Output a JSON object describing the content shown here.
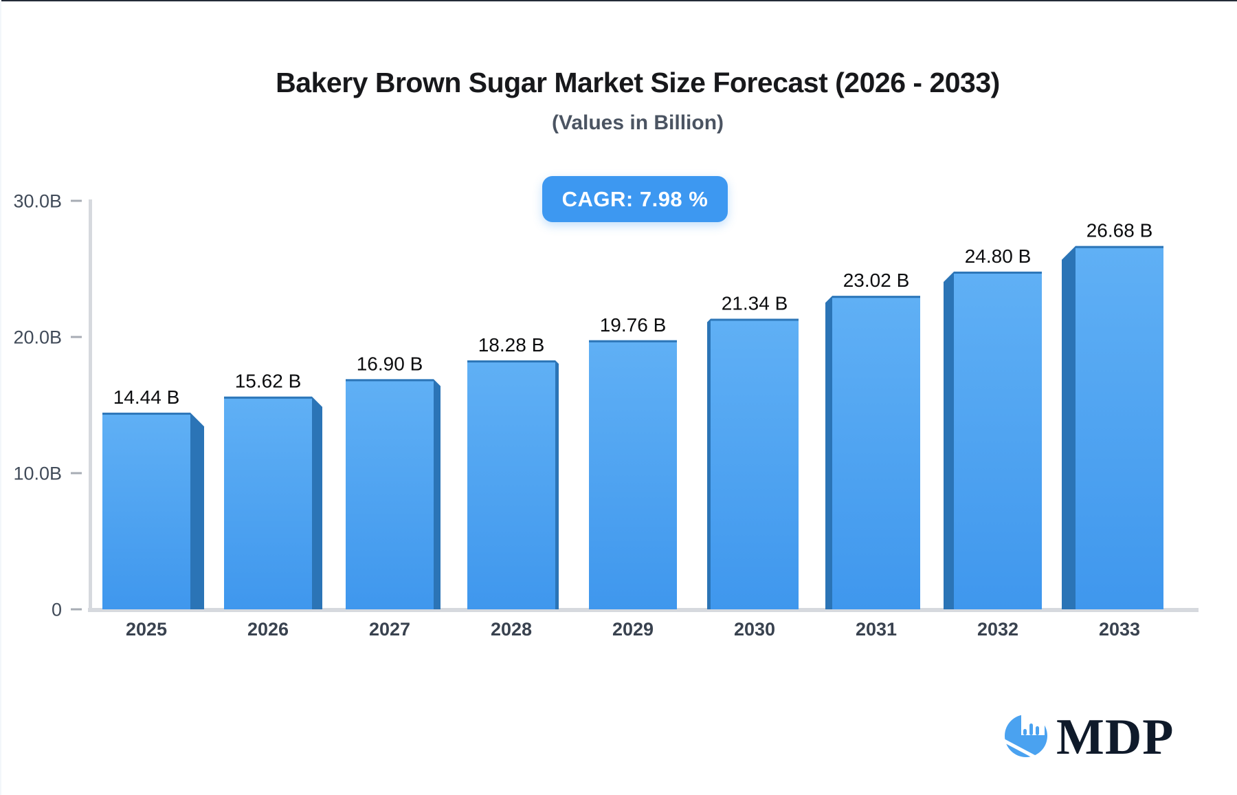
{
  "header": {
    "title": "Bakery Brown Sugar Market Size Forecast (2026 - 2033)",
    "subtitle": "(Values in Billion)",
    "cagr_label": "CAGR: 7.98 %"
  },
  "chart_data": {
    "type": "bar",
    "style": "3d-extruded-perspective",
    "title": "Bakery Brown Sugar Market Size Forecast (2026 - 2033)",
    "subtitle": "(Values in Billion)",
    "annotation": "CAGR: 7.98 %",
    "categories": [
      "2025",
      "2026",
      "2027",
      "2028",
      "2029",
      "2030",
      "2031",
      "2032",
      "2033"
    ],
    "values": [
      14.44,
      15.62,
      16.9,
      18.28,
      19.76,
      21.34,
      23.02,
      24.8,
      26.68
    ],
    "value_labels": [
      "14.44 B",
      "15.62 B",
      "16.90 B",
      "18.28 B",
      "19.76 B",
      "21.34 B",
      "23.02 B",
      "24.80 B",
      "26.68 B"
    ],
    "unit": "Billion",
    "xlabel": "",
    "ylabel": "",
    "ylim": [
      0,
      30
    ],
    "y_ticks": [
      {
        "value": 30,
        "label": "30.0B"
      },
      {
        "value": 20,
        "label": "20.0B"
      },
      {
        "value": 10,
        "label": "10.0B"
      },
      {
        "value": 0,
        "label": "0"
      }
    ],
    "grid": false,
    "legend": false
  },
  "logo": {
    "text": "MDP",
    "mark": "pie-bar-chart-icon"
  },
  "colors": {
    "bar_top": "#60b0f5",
    "bar_bottom": "#3f97ed",
    "bar_side": "#2b74b6",
    "bar_top_edge": "#2d76b8",
    "badge_bg": "#3d98f1",
    "badge_text": "#ffffff",
    "axis": "#d6d9de",
    "tick": "#a7acb4",
    "title": "#17181b",
    "subtitle": "#4b5462",
    "value_label": "#0c0d0f",
    "x_label": "#39424f",
    "y_label": "#414b59",
    "logo_text": "#0f1a2a",
    "logo_mark": "#4aa2f0"
  }
}
